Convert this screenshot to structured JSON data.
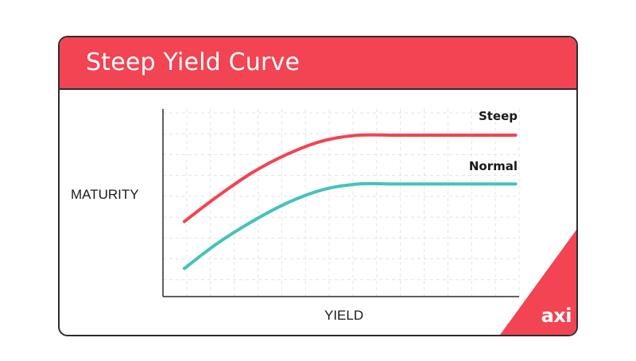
{
  "title": "Steep Yield Curve",
  "logo": "axi",
  "colors": {
    "brand": "#f24453",
    "steep": "#f24453",
    "normal": "#46c1be",
    "border": "#2d2d2d",
    "grid": "#e4e4e4"
  },
  "chart_data": {
    "type": "line",
    "xlabel": "YIELD",
    "ylabel": "MATURITY",
    "grid": true,
    "legend": "inline-right",
    "xlim": [
      0,
      10
    ],
    "ylim": [
      0,
      10
    ],
    "series": [
      {
        "name": "Steep",
        "color": "#f24453",
        "x": [
          0.6,
          1.5,
          2.5,
          3.5,
          4.5,
          5.5,
          6.5,
          7.5,
          8.5,
          9.9
        ],
        "y": [
          4.0,
          5.3,
          6.6,
          7.6,
          8.3,
          8.6,
          8.6,
          8.6,
          8.6,
          8.6
        ]
      },
      {
        "name": "Normal",
        "color": "#46c1be",
        "x": [
          0.6,
          1.5,
          2.5,
          3.5,
          4.5,
          5.5,
          6.5,
          7.5,
          8.5,
          9.9
        ],
        "y": [
          1.5,
          2.8,
          4.0,
          5.0,
          5.7,
          6.0,
          6.0,
          6.0,
          6.0,
          6.0
        ]
      }
    ]
  }
}
